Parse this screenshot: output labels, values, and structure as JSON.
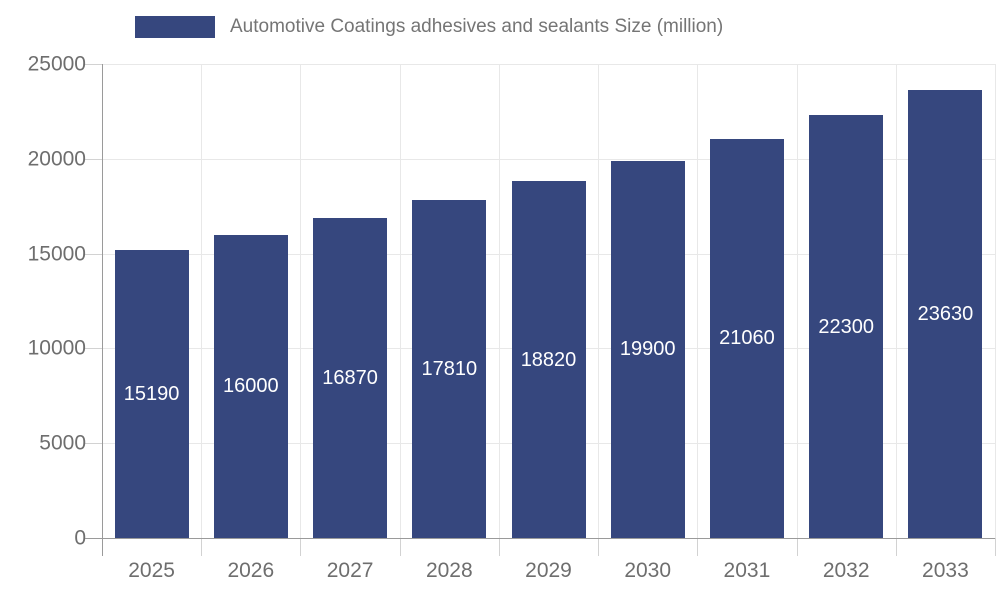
{
  "legend": {
    "label": "Automotive Coatings adhesives and sealants Size (million)"
  },
  "colors": {
    "bar": "#36477E",
    "grid": "#e8e8e8",
    "axis": "#9a9a9a",
    "tick_label": "#6e6e6e",
    "legend_text": "#757575",
    "value_label": "#ffffff"
  },
  "chart_data": {
    "type": "bar",
    "title": "Automotive Coatings adhesives and sealants Size (million)",
    "categories": [
      "2025",
      "2026",
      "2027",
      "2028",
      "2029",
      "2030",
      "2031",
      "2032",
      "2033"
    ],
    "values": [
      15190,
      16000,
      16870,
      17810,
      18820,
      19900,
      21060,
      22300,
      23630
    ],
    "xlabel": "",
    "ylabel": "",
    "ylim": [
      0,
      25000
    ],
    "yticks": [
      0,
      5000,
      10000,
      15000,
      20000,
      25000
    ],
    "grid": true,
    "legend_position": "top",
    "bar_color": "#36477E"
  }
}
